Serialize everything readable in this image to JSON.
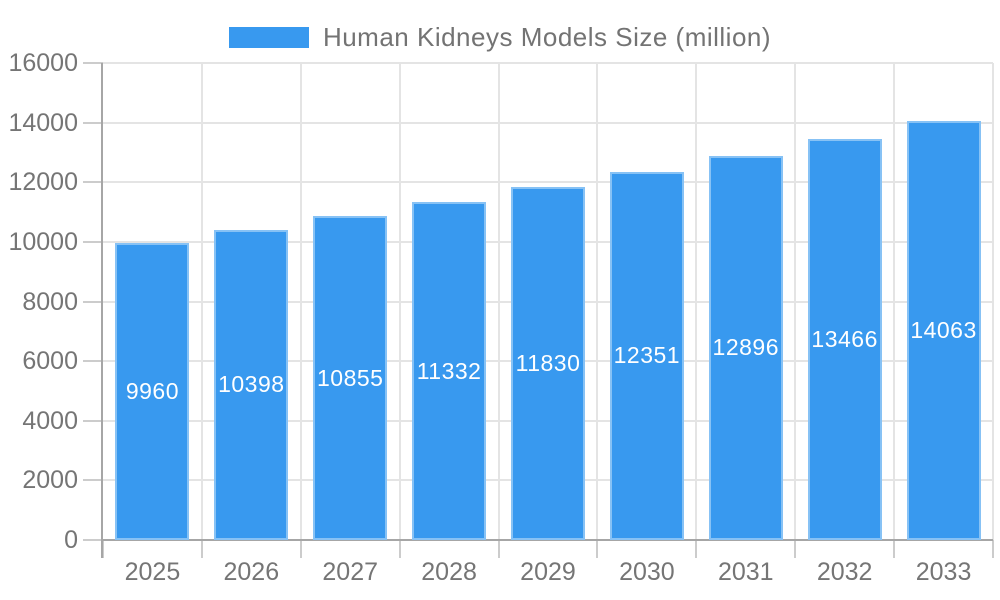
{
  "legend": {
    "label": "Human Kidneys Models Size (million)",
    "swatch_color": "#3899EF"
  },
  "chart_data": {
    "type": "bar",
    "title": "Human Kidneys Models Size (million)",
    "categories": [
      "2025",
      "2026",
      "2027",
      "2028",
      "2029",
      "2030",
      "2031",
      "2032",
      "2033"
    ],
    "values": [
      9960,
      10398,
      10855,
      11332,
      11830,
      12351,
      12896,
      13466,
      14063
    ],
    "series_name": "Human Kidneys Models Size (million)",
    "xlabel": "",
    "ylabel": "",
    "ylim": [
      0,
      16000
    ],
    "ytick_step": 2000,
    "ytick_labels": [
      "0",
      "2000",
      "4000",
      "6000",
      "8000",
      "10000",
      "12000",
      "14000",
      "16000"
    ],
    "grid": true,
    "legend_position": "top",
    "value_labels_visible": true
  },
  "colors": {
    "bar_fill": "#3899EF",
    "bar_border": "rgba(255,255,255,0.40)",
    "gridline": "#e4e4e4",
    "axis_line": "#a6a6a6",
    "tick_text": "#757575",
    "value_label_text": "#ffffff",
    "background": "#ffffff"
  }
}
